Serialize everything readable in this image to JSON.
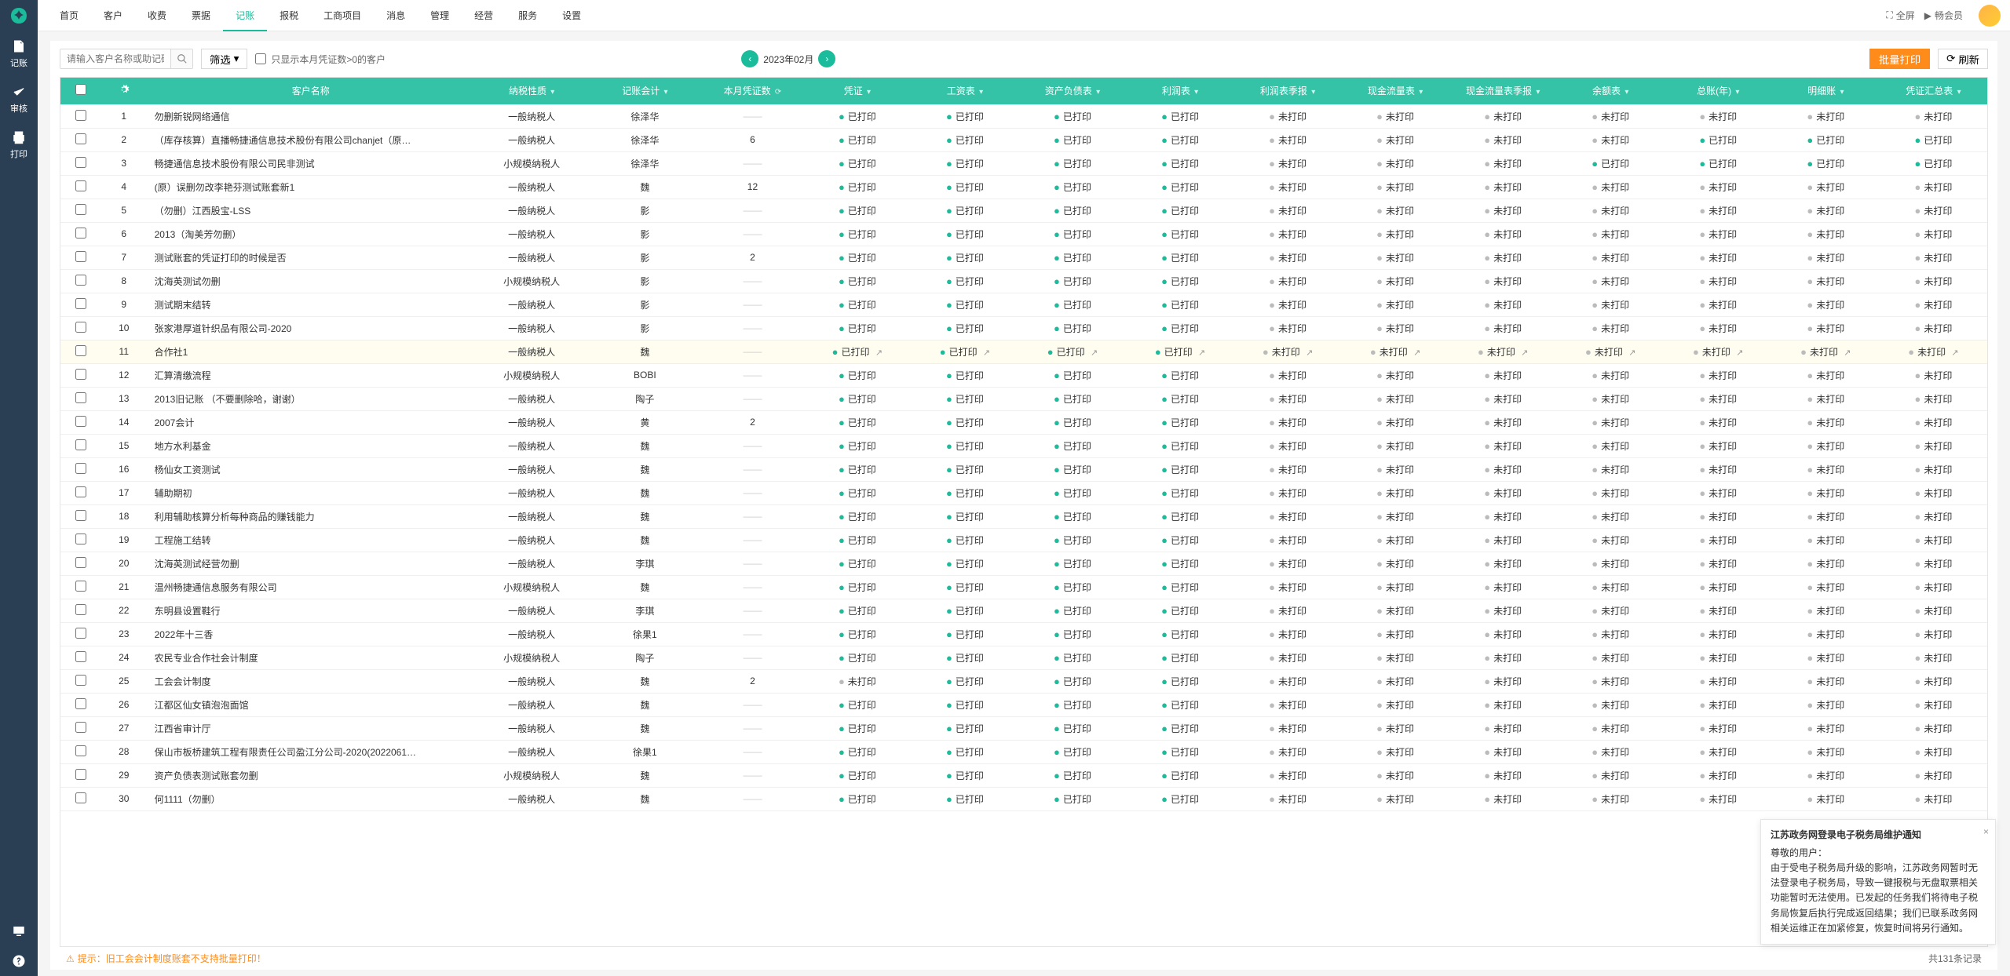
{
  "sidebar": {
    "items": [
      {
        "icon": "doc",
        "label": "记账"
      },
      {
        "icon": "check",
        "label": "审核"
      },
      {
        "icon": "print",
        "label": "打印"
      }
    ]
  },
  "topnav": {
    "items": [
      "首页",
      "客户",
      "收费",
      "票据",
      "记账",
      "报税",
      "工商项目",
      "消息",
      "管理",
      "经营",
      "服务",
      "设置"
    ],
    "active_index": 4,
    "fullscreen": "全屏",
    "vip": "畅会员"
  },
  "toolbar": {
    "search_placeholder": "请输入客户名称或助记码",
    "filter_label": "筛选",
    "only_positive_label": "只显示本月凭证数>0的客户",
    "date_label": "2023年02月",
    "batch_print": "批量打印",
    "refresh": "刷新"
  },
  "columns": [
    "",
    "#",
    "客户名称",
    "纳税性质",
    "记账会计",
    "本月凭证数",
    "凭证",
    "工资表",
    "资产负债表",
    "利润表",
    "利润表季报",
    "现金流量表",
    "现金流量表季报",
    "余额表",
    "总账(年)",
    "明细账",
    "凭证汇总表"
  ],
  "status_printed": "已打印",
  "status_unprinted": "未打印",
  "rows": [
    {
      "no": 1,
      "name": "勿删新锐网络通信",
      "tax": "一般纳税人",
      "acc": "徐泽华",
      "vch": "",
      "p": [
        1,
        1,
        1,
        1,
        0,
        0,
        0,
        0,
        0,
        0,
        0
      ]
    },
    {
      "no": 2,
      "name": "（库存核算）直播畅捷通信息技术股份有限公司chanjet（原…",
      "tax": "一般纳税人",
      "acc": "徐泽华",
      "vch": "6",
      "p": [
        1,
        1,
        1,
        1,
        0,
        0,
        0,
        0,
        1,
        1,
        1
      ]
    },
    {
      "no": 3,
      "name": "畅捷通信息技术股份有限公司民非测试",
      "tax": "小规模纳税人",
      "acc": "徐泽华",
      "vch": "",
      "p": [
        1,
        1,
        1,
        1,
        0,
        0,
        0,
        1,
        1,
        1,
        1
      ]
    },
    {
      "no": 4,
      "name": "(原）误删勿改李艳芬测试账套新1",
      "tax": "一般纳税人",
      "acc": "魏",
      "vch": "12",
      "p": [
        1,
        1,
        1,
        1,
        0,
        0,
        0,
        0,
        0,
        0,
        0
      ]
    },
    {
      "no": 5,
      "name": "（勿删）江西股宝-LSS",
      "tax": "一般纳税人",
      "acc": "影",
      "vch": "",
      "p": [
        1,
        1,
        1,
        1,
        0,
        0,
        0,
        0,
        0,
        0,
        0
      ]
    },
    {
      "no": 6,
      "name": "2013（淘美芳勿删）",
      "tax": "一般纳税人",
      "acc": "影",
      "vch": "",
      "p": [
        1,
        1,
        1,
        1,
        0,
        0,
        0,
        0,
        0,
        0,
        0
      ]
    },
    {
      "no": 7,
      "name": "测试账套的凭证打印的时候是否",
      "tax": "一般纳税人",
      "acc": "影",
      "vch": "2",
      "p": [
        1,
        1,
        1,
        1,
        0,
        0,
        0,
        0,
        0,
        0,
        0
      ]
    },
    {
      "no": 8,
      "name": "沈海英测试勿删",
      "tax": "小规模纳税人",
      "acc": "影",
      "vch": "",
      "p": [
        1,
        1,
        1,
        1,
        0,
        0,
        0,
        0,
        0,
        0,
        0
      ]
    },
    {
      "no": 9,
      "name": "测试期末结转",
      "tax": "一般纳税人",
      "acc": "影",
      "vch": "",
      "p": [
        1,
        1,
        1,
        1,
        0,
        0,
        0,
        0,
        0,
        0,
        0
      ]
    },
    {
      "no": 10,
      "name": "张家港厚道针织品有限公司-2020",
      "tax": "一般纳税人",
      "acc": "影",
      "vch": "",
      "p": [
        1,
        1,
        1,
        1,
        0,
        0,
        0,
        0,
        0,
        0,
        0
      ]
    },
    {
      "no": 11,
      "name": "合作社1",
      "tax": "一般纳税人",
      "acc": "魏",
      "vch": "",
      "p": [
        1,
        1,
        1,
        1,
        0,
        0,
        0,
        0,
        0,
        0,
        0
      ],
      "hl": true,
      "ext": true
    },
    {
      "no": 12,
      "name": "汇算清缴流程",
      "tax": "小规模纳税人",
      "acc": "BOBI",
      "vch": "",
      "p": [
        1,
        1,
        1,
        1,
        0,
        0,
        0,
        0,
        0,
        0,
        0
      ]
    },
    {
      "no": 13,
      "name": "2013旧记账 （不要删除哈，谢谢）",
      "tax": "一般纳税人",
      "acc": "陶子",
      "vch": "",
      "p": [
        1,
        1,
        1,
        1,
        0,
        0,
        0,
        0,
        0,
        0,
        0
      ]
    },
    {
      "no": 14,
      "name": "2007会计",
      "tax": "一般纳税人",
      "acc": "黄",
      "vch": "2",
      "p": [
        1,
        1,
        1,
        1,
        0,
        0,
        0,
        0,
        0,
        0,
        0
      ]
    },
    {
      "no": 15,
      "name": "地方水利基金",
      "tax": "一般纳税人",
      "acc": "魏",
      "vch": "",
      "p": [
        1,
        1,
        1,
        1,
        0,
        0,
        0,
        0,
        0,
        0,
        0
      ]
    },
    {
      "no": 16,
      "name": "杨仙女工资测试",
      "tax": "一般纳税人",
      "acc": "魏",
      "vch": "",
      "p": [
        1,
        1,
        1,
        1,
        0,
        0,
        0,
        0,
        0,
        0,
        0
      ]
    },
    {
      "no": 17,
      "name": "辅助期初",
      "tax": "一般纳税人",
      "acc": "魏",
      "vch": "",
      "p": [
        1,
        1,
        1,
        1,
        0,
        0,
        0,
        0,
        0,
        0,
        0
      ]
    },
    {
      "no": 18,
      "name": "利用辅助核算分析每种商品的赚钱能力",
      "tax": "一般纳税人",
      "acc": "魏",
      "vch": "",
      "p": [
        1,
        1,
        1,
        1,
        0,
        0,
        0,
        0,
        0,
        0,
        0
      ]
    },
    {
      "no": 19,
      "name": "工程施工结转",
      "tax": "一般纳税人",
      "acc": "魏",
      "vch": "",
      "p": [
        1,
        1,
        1,
        1,
        0,
        0,
        0,
        0,
        0,
        0,
        0
      ]
    },
    {
      "no": 20,
      "name": "沈海英测试经营勿删",
      "tax": "一般纳税人",
      "acc": "李琪",
      "vch": "",
      "p": [
        1,
        1,
        1,
        1,
        0,
        0,
        0,
        0,
        0,
        0,
        0
      ]
    },
    {
      "no": 21,
      "name": "温州畅捷通信息服务有限公司",
      "tax": "小规模纳税人",
      "acc": "魏",
      "vch": "",
      "p": [
        1,
        1,
        1,
        1,
        0,
        0,
        0,
        0,
        0,
        0,
        0
      ]
    },
    {
      "no": 22,
      "name": "东明县设置鞋行",
      "tax": "一般纳税人",
      "acc": "李琪",
      "vch": "",
      "p": [
        1,
        1,
        1,
        1,
        0,
        0,
        0,
        0,
        0,
        0,
        0
      ]
    },
    {
      "no": 23,
      "name": "2022年十三香",
      "tax": "一般纳税人",
      "acc": "徐果1",
      "vch": "",
      "p": [
        1,
        1,
        1,
        1,
        0,
        0,
        0,
        0,
        0,
        0,
        0
      ]
    },
    {
      "no": 24,
      "name": "农民专业合作社会计制度",
      "tax": "小规模纳税人",
      "acc": "陶子",
      "vch": "",
      "p": [
        1,
        1,
        1,
        1,
        0,
        0,
        0,
        0,
        0,
        0,
        0
      ]
    },
    {
      "no": 25,
      "name": "工会会计制度",
      "tax": "一般纳税人",
      "acc": "魏",
      "vch": "2",
      "p": [
        0,
        1,
        1,
        1,
        0,
        0,
        0,
        0,
        0,
        0,
        0
      ]
    },
    {
      "no": 26,
      "name": "江都区仙女镇泡泡面馆",
      "tax": "一般纳税人",
      "acc": "魏",
      "vch": "",
      "p": [
        1,
        1,
        1,
        1,
        0,
        0,
        0,
        0,
        0,
        0,
        0
      ]
    },
    {
      "no": 27,
      "name": "江西省审计厅",
      "tax": "一般纳税人",
      "acc": "魏",
      "vch": "",
      "p": [
        1,
        1,
        1,
        1,
        0,
        0,
        0,
        0,
        0,
        0,
        0
      ]
    },
    {
      "no": 28,
      "name": "保山市板桥建筑工程有限责任公司盈江分公司-2020(2022061…",
      "tax": "一般纳税人",
      "acc": "徐果1",
      "vch": "",
      "p": [
        1,
        1,
        1,
        1,
        0,
        0,
        0,
        0,
        0,
        0,
        0
      ]
    },
    {
      "no": 29,
      "name": "资产负债表测试账套勿删",
      "tax": "小规模纳税人",
      "acc": "魏",
      "vch": "",
      "p": [
        1,
        1,
        1,
        1,
        0,
        0,
        0,
        0,
        0,
        0,
        0
      ]
    },
    {
      "no": 30,
      "name": "何1111（勿删）",
      "tax": "一般纳税人",
      "acc": "魏",
      "vch": "",
      "p": [
        1,
        1,
        1,
        1,
        0,
        0,
        0,
        0,
        0,
        0,
        0
      ]
    }
  ],
  "footer": {
    "tip": "提示：旧工会会计制度账套不支持批量打印！",
    "count": "共131条记录"
  },
  "notice": {
    "title": "江苏政务网登录电子税务局维护通知",
    "greeting": "尊敬的用户：",
    "body": "由于受电子税务局升级的影响，江苏政务网暂时无法登录电子税务局，导致一键报税与无盘取票相关功能暂时无法使用。已发起的任务我们将待电子税务局恢复后执行完成返回结果；我们已联系政务网相关运维正在加紧修复，恢复时间将另行通知。"
  }
}
